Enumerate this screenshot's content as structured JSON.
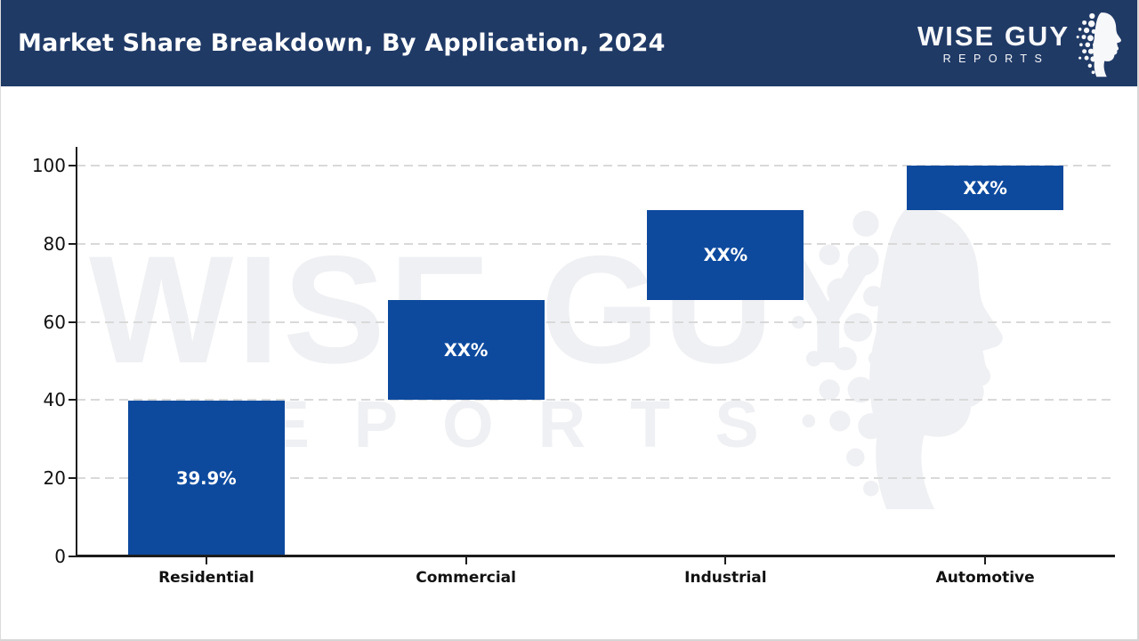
{
  "header": {
    "title": "Market Share Breakdown, By Application, 2024",
    "logo": {
      "line1": "WISE GUY",
      "line2": "REPORTS"
    }
  },
  "watermark": {
    "line1": "WISE GUY",
    "line2": "REPORTS"
  },
  "colors": {
    "header_bg": "#203a66",
    "bar": "#0d4a9e",
    "grid": "#d9d9d9",
    "axis": "#1c1c1c",
    "bar_label": "#ffffff",
    "watermark": "#eff0f3"
  },
  "chart_data": {
    "type": "bar",
    "subtype": "waterfall",
    "title": "Market Share Breakdown, By Application, 2024",
    "categories": [
      "Residential",
      "Commercial",
      "Industrial",
      "Automotive"
    ],
    "series": [
      {
        "name": "Market Share",
        "segments": [
          {
            "category": "Residential",
            "start": 0,
            "end": 39.9,
            "label": "39.9%"
          },
          {
            "category": "Commercial",
            "start": 40,
            "end": 65.5,
            "label": "XX%"
          },
          {
            "category": "Industrial",
            "start": 65.5,
            "end": 88.5,
            "label": "XX%"
          },
          {
            "category": "Automotive",
            "start": 88.5,
            "end": 100,
            "label": "XX%"
          }
        ]
      }
    ],
    "xlabel": "",
    "ylabel": "",
    "ylim": [
      0,
      104.8
    ],
    "yticks": [
      0,
      20,
      40,
      60,
      80,
      100
    ],
    "grid": "horizontal-dashed",
    "legend": "none"
  }
}
